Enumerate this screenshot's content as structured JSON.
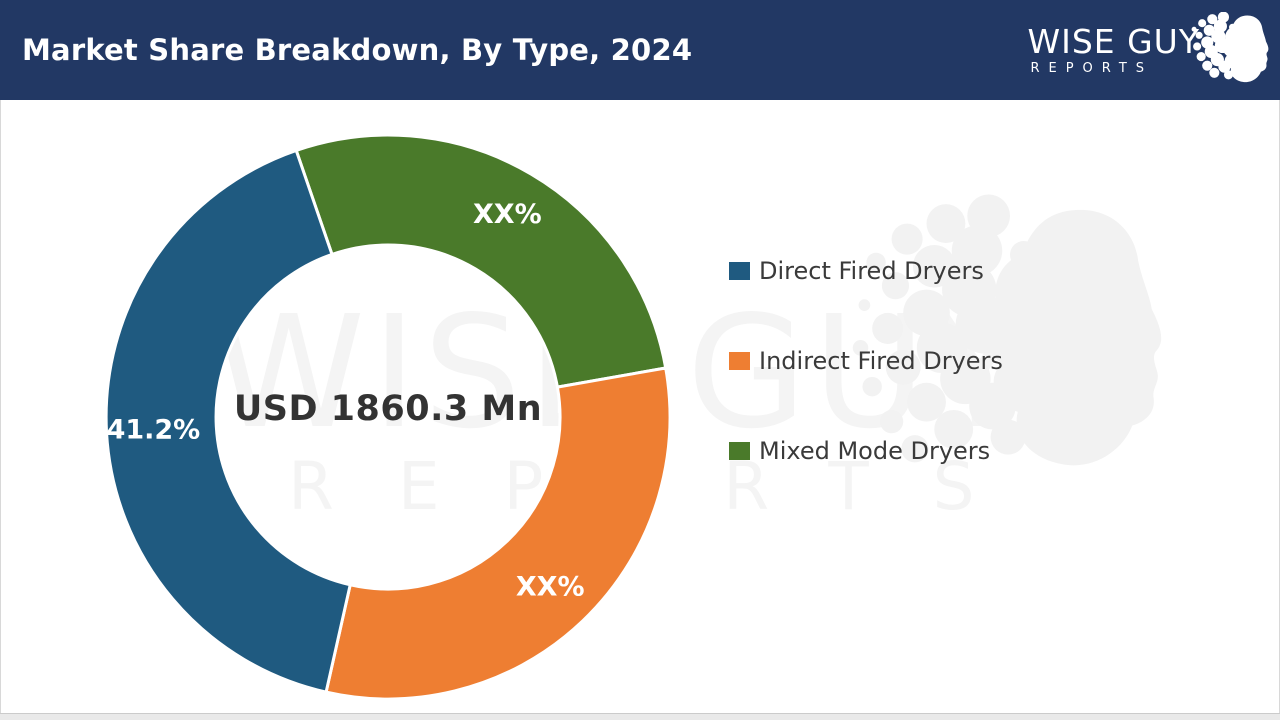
{
  "header": {
    "title": "Market Share Breakdown, By Type, 2024",
    "bg_color": "#223864",
    "logo": {
      "wordmark": "WISE GUY",
      "tagline": "REPORTS"
    }
  },
  "watermark": {
    "wordmark": "WISE GUY",
    "tagline": "REPORTS"
  },
  "chart_data": {
    "type": "pie",
    "subtype": "donut",
    "title": "Market Share Breakdown, By Type, 2024",
    "center_label": "USD 1860.3 Mn",
    "legend_position": "right",
    "start_angle_deg": -19,
    "draw_sequence": [
      2,
      1,
      0
    ],
    "slices": [
      {
        "name": "Direct Fired Dryers",
        "display_label": "41.2%",
        "value_pct": 41.2,
        "color": "#1f5a80"
      },
      {
        "name": "Indirect Fired Dryers",
        "display_label": "XX%",
        "value_pct": 31.3,
        "color": "#ee7e32"
      },
      {
        "name": "Mixed Mode Dryers",
        "display_label": "XX%",
        "value_pct": 27.5,
        "color": "#4a7a2a"
      }
    ]
  },
  "legend": {
    "items": [
      {
        "label": "Direct Fired Dryers",
        "color": "#1f5a80"
      },
      {
        "label": "Indirect Fired Dryers",
        "color": "#ee7e32"
      },
      {
        "label": "Mixed Mode Dryers",
        "color": "#4a7a2a"
      }
    ]
  }
}
